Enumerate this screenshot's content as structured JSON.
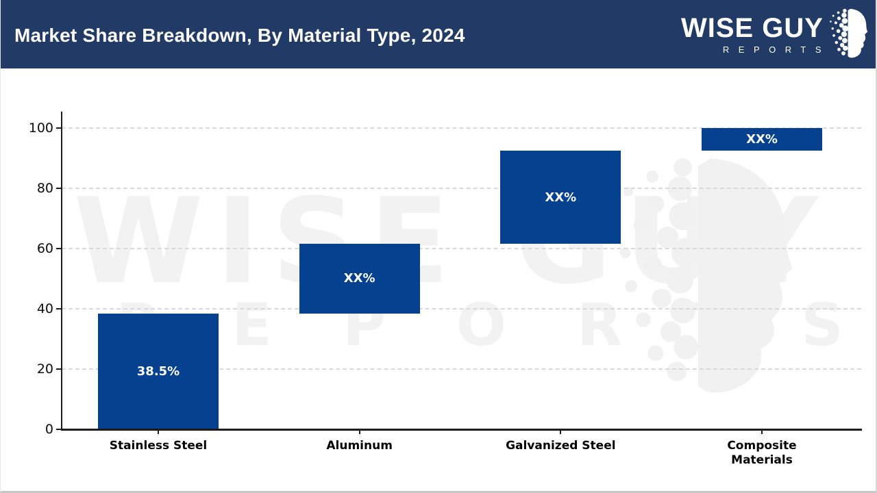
{
  "header": {
    "title": "Market Share Breakdown, By Material Type, 2024",
    "bg_color": "#213a66",
    "logo": {
      "line1": "WISE GUY",
      "line2": "REPORTS"
    }
  },
  "watermark": {
    "line1": "WISE GUY",
    "line2": "REPORTS"
  },
  "chart_data": {
    "type": "bar",
    "subtype": "waterfall",
    "title": "Market Share Breakdown, By Material Type, 2024",
    "categories": [
      "Stainless Steel",
      "Aluminum",
      "Galvanized Steel",
      "Composite Materials"
    ],
    "tick_label_lines": [
      [
        "Stainless Steel"
      ],
      [
        "Aluminum"
      ],
      [
        "Galvanized Steel"
      ],
      [
        "Composite",
        "Materials"
      ]
    ],
    "segments": [
      {
        "category": "Stainless Steel",
        "start": 0,
        "end": 38.5,
        "value": 38.5,
        "label": "38.5%"
      },
      {
        "category": "Aluminum",
        "start": 38.5,
        "end": 61.5,
        "value": 23.0,
        "label": "XX%"
      },
      {
        "category": "Galvanized Steel",
        "start": 61.5,
        "end": 92.5,
        "value": 31.0,
        "label": "XX%"
      },
      {
        "category": "Composite Materials",
        "start": 92.5,
        "end": 100,
        "value": 7.5,
        "label": "XX%"
      }
    ],
    "xlabel": "",
    "ylabel": "",
    "ylim": [
      0,
      105.3
    ],
    "yticks": [
      0,
      20,
      40,
      60,
      80,
      100
    ],
    "grid": "horizontal dashed",
    "legend": "none",
    "bar_color": "#05418f",
    "bar_label_color": "#ffffff",
    "grid_color": "#d9d9d9"
  }
}
